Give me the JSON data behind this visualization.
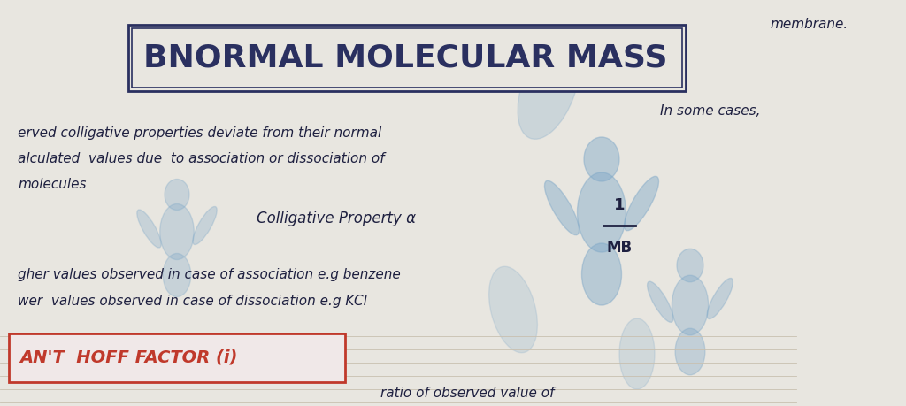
{
  "bg_color": "#e8e6e0",
  "title_text": "BNORMAL MOLECULAR MASS",
  "title_box_color": "#2a3060",
  "membrane_text": "membrane.",
  "line1": "In some cases,",
  "line2": "erved colligative properties deviate from their normal",
  "line3": "alculated  values due  to association or dissociation of",
  "line4": "molecules",
  "formula_left": "Colligative Property α",
  "formula_frac_num": "1",
  "formula_frac_den": "MB",
  "line5": "gher values observed in case of association e.g benzene",
  "line6": "wer  values observed in case of dissociation e.g KCl",
  "highlight_text": "AN'T  HOFF FACTOR (i)",
  "highlight_color": "#c0392b",
  "last_line": "ratio of observed value of",
  "text_color": "#1e2040",
  "watermark_color": "#7fa8c8",
  "watermark_alpha": 0.45
}
